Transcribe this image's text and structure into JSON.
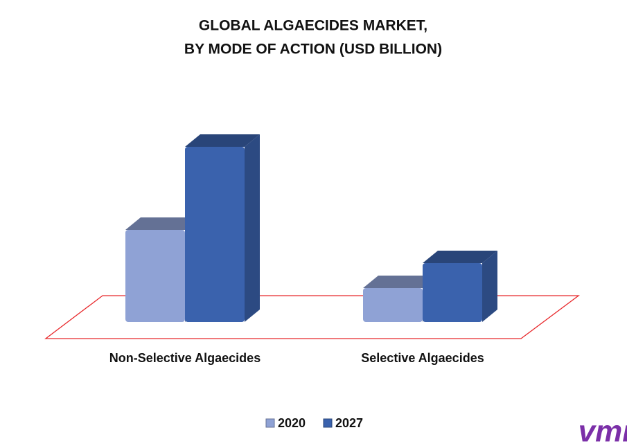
{
  "chart_data": {
    "type": "bar3d",
    "title": [
      "GLOBAL ALGAECIDES MARKET,",
      "BY MODE OF ACTION (USD BILLION)"
    ],
    "categories": [
      "Non-Selective Algaecides",
      "Selective Algaecides"
    ],
    "series": [
      {
        "name": "2020",
        "color": "#8fa2d5",
        "values": [
          1.33,
          0.49
        ]
      },
      {
        "name": "2027",
        "color": "#3a62ad",
        "values": [
          2.53,
          0.85
        ]
      }
    ],
    "legend": "bottom"
  },
  "logo": "vmr"
}
